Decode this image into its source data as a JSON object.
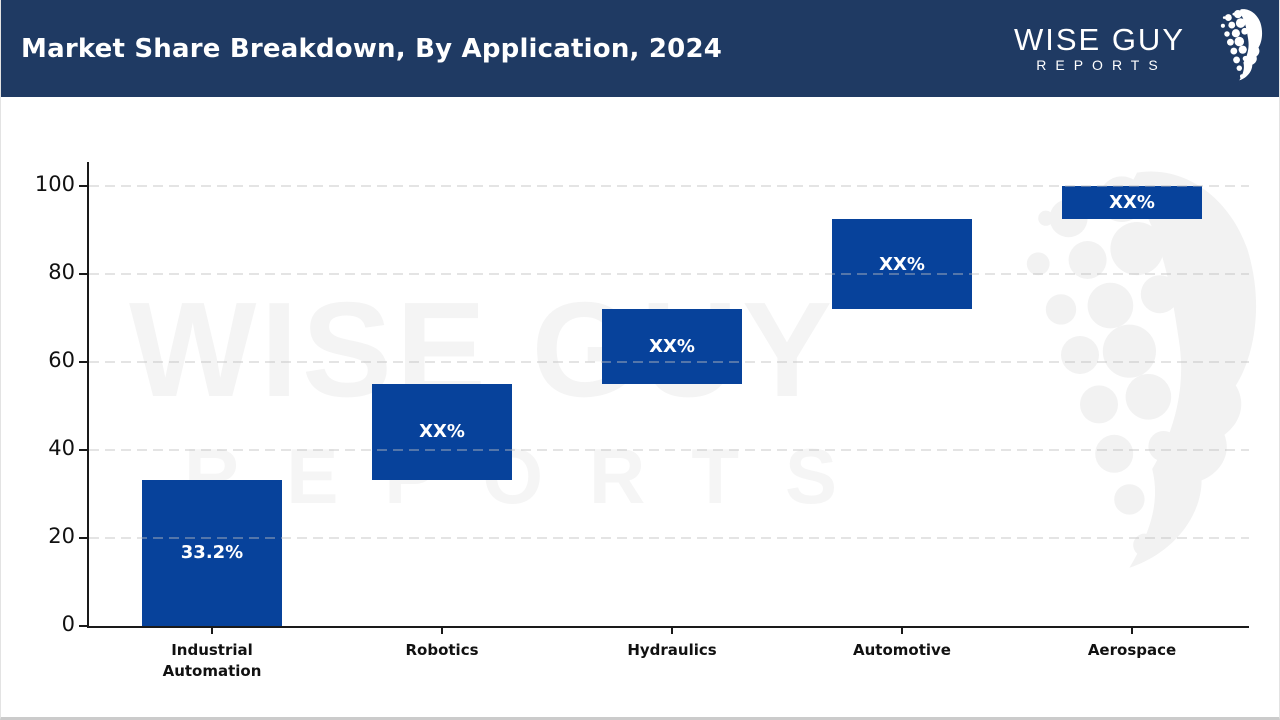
{
  "header": {
    "title": "Market Share Breakdown, By Application, 2024",
    "background_color": "#1f3a63",
    "logo": {
      "line1": "WISE GUY",
      "line2": "REPORTS"
    }
  },
  "watermark": {
    "line1": "WISE GUY",
    "line2": "REPORTS"
  },
  "chart_data": {
    "type": "bar",
    "subtype": "waterfall",
    "title": "Market Share Breakdown, By Application, 2024",
    "xlabel": "",
    "ylabel": "",
    "categories": [
      "Industrial Automation",
      "Robotics",
      "Hydraulics",
      "Automotive",
      "Aerospace"
    ],
    "bars": [
      {
        "category": "Industrial Automation",
        "start": 0,
        "end": 33.2,
        "label": "33.2%"
      },
      {
        "category": "Robotics",
        "start": 33.2,
        "end": 55,
        "label": "XX%"
      },
      {
        "category": "Hydraulics",
        "start": 55,
        "end": 72,
        "label": "XX%"
      },
      {
        "category": "Automotive",
        "start": 72,
        "end": 92.5,
        "label": "XX%"
      },
      {
        "category": "Aerospace",
        "start": 92.5,
        "end": 100,
        "label": "XX%"
      }
    ],
    "yticks": [
      0,
      20,
      40,
      60,
      80,
      100
    ],
    "ylim": [
      0,
      105
    ],
    "grid": "dashed-horizontal",
    "legend": "none",
    "bar_color": "#07429b",
    "bar_label_color": "#ffffff",
    "axis_color": "#1a1a1a",
    "gridline_color": "#dcdcdc"
  }
}
